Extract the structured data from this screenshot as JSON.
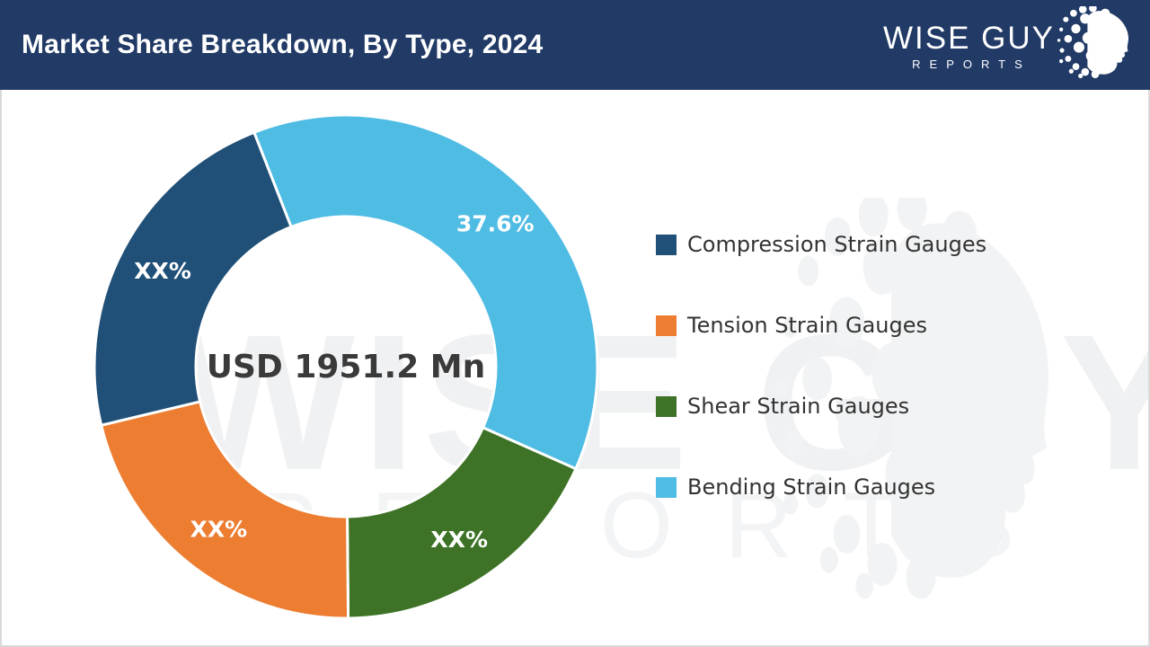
{
  "header": {
    "title": "Market Share Breakdown, By Type, 2024",
    "bg_color": "#213A66",
    "logo": {
      "line1": "WISE GUY",
      "line2": "REPORTS"
    }
  },
  "watermark": {
    "line1": "WISE GUY",
    "line2": "REPORTS"
  },
  "chart_data": {
    "type": "pie",
    "donut": true,
    "title": "Market Share Breakdown, By Type, 2024",
    "center_label": "USD 1951.2 Mn",
    "legend_position": "right",
    "segments": [
      {
        "label": "Bending Strain Gauges",
        "display_value": "37.6%",
        "value_pct": 37.6,
        "color": "#4FBCE4"
      },
      {
        "label": "Shear Strain Gauges",
        "display_value": "XX%",
        "value_pct": 18.2,
        "color": "#3E7327"
      },
      {
        "label": "Tension Strain Gauges",
        "display_value": "XX%",
        "value_pct": 21.4,
        "color": "#EC7D31"
      },
      {
        "label": "Compression Strain Gauges",
        "display_value": "XX%",
        "value_pct": 22.8,
        "color": "#205078"
      }
    ],
    "legend_order": [
      "Compression Strain Gauges",
      "Tension Strain Gauges",
      "Shear Strain Gauges",
      "Bending Strain Gauges"
    ]
  }
}
